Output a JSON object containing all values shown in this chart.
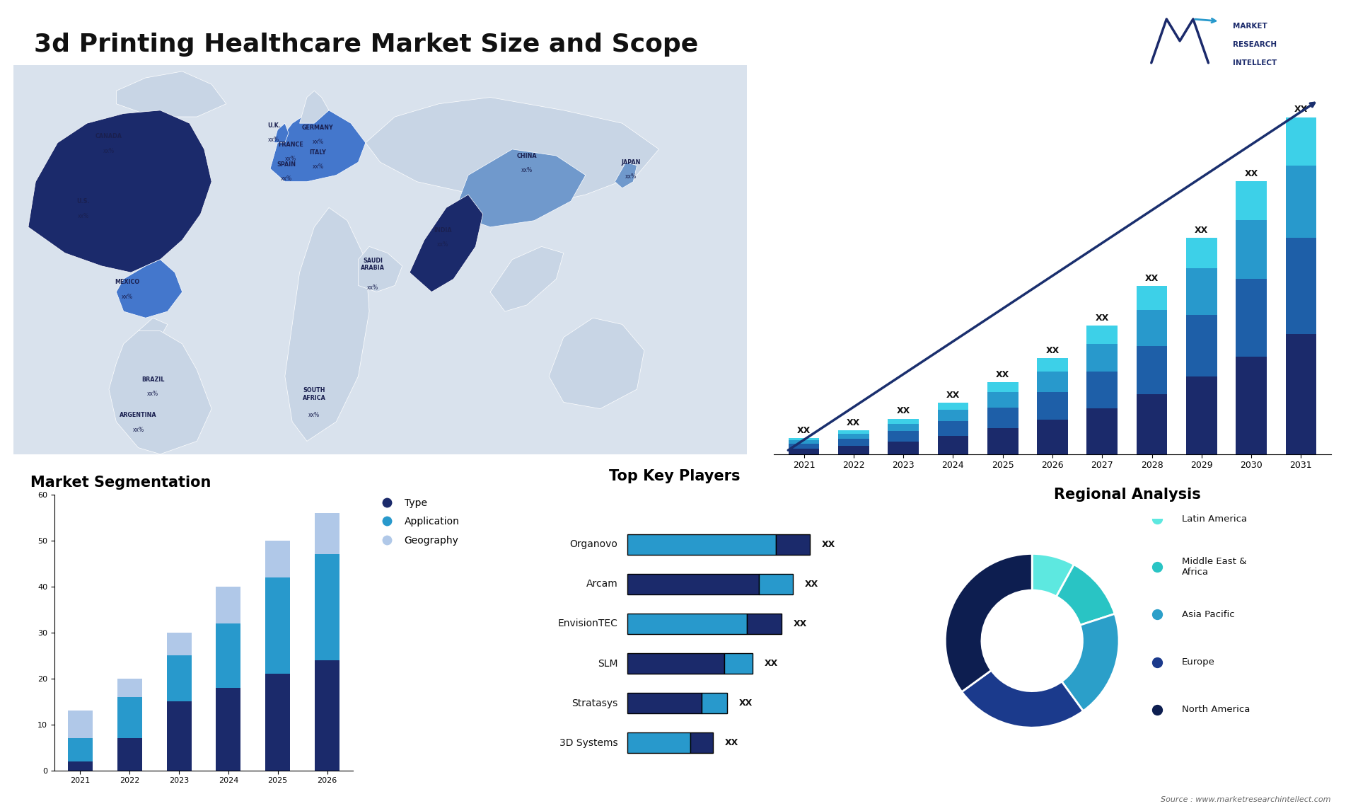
{
  "title": "3d Printing Healthcare Market Size and Scope",
  "title_fontsize": 26,
  "background_color": "#ffffff",
  "bar_chart_years": [
    2021,
    2022,
    2023,
    2024,
    2025,
    2026,
    2027,
    2028,
    2029,
    2030,
    2031
  ],
  "bar_seg1": [
    1.0,
    1.5,
    2.2,
    3.2,
    4.5,
    6.0,
    8.0,
    10.5,
    13.5,
    17.0,
    21.0
  ],
  "bar_seg2": [
    0.8,
    1.2,
    1.8,
    2.6,
    3.6,
    4.8,
    6.4,
    8.4,
    10.8,
    13.6,
    16.8
  ],
  "bar_seg3": [
    0.6,
    0.9,
    1.3,
    1.9,
    2.7,
    3.6,
    4.8,
    6.3,
    8.1,
    10.2,
    12.6
  ],
  "bar_seg4": [
    0.4,
    0.6,
    0.9,
    1.3,
    1.8,
    2.4,
    3.2,
    4.2,
    5.4,
    6.8,
    8.4
  ],
  "bar_colors": [
    "#1b2a6b",
    "#1e5fa8",
    "#2899cc",
    "#3dd0e8"
  ],
  "seg_chart_title": "Market Segmentation",
  "seg_years": [
    2021,
    2022,
    2023,
    2024,
    2025,
    2026
  ],
  "seg_type": [
    2,
    7,
    15,
    18,
    21,
    24
  ],
  "seg_application": [
    5,
    9,
    10,
    14,
    21,
    23
  ],
  "seg_geography": [
    6,
    4,
    5,
    8,
    8,
    9
  ],
  "seg_colors": [
    "#1b2a6b",
    "#2899cc",
    "#b0c8e8"
  ],
  "seg_legend": [
    "Type",
    "Application",
    "Geography"
  ],
  "seg_ylim": [
    0,
    60
  ],
  "players_title": "Top Key Players",
  "players": [
    "Organovo",
    "Arcam",
    "EnvisionTEC",
    "SLM",
    "Stratasys",
    "3D Systems"
  ],
  "players_seg1": [
    0.52,
    0.46,
    0.42,
    0.34,
    0.26,
    0.22
  ],
  "players_seg2": [
    0.12,
    0.12,
    0.12,
    0.1,
    0.09,
    0.08
  ],
  "players_col1": [
    "#2899cc",
    "#1b2a6b",
    "#2899cc",
    "#1b2a6b",
    "#1b2a6b",
    "#2899cc"
  ],
  "players_col2": [
    "#1b2a6b",
    "#2899cc",
    "#1b2a6b",
    "#2899cc",
    "#2899cc",
    "#1b2a6b"
  ],
  "regional_title": "Regional Analysis",
  "regional_labels": [
    "Latin America",
    "Middle East &\nAfrica",
    "Asia Pacific",
    "Europe",
    "North America"
  ],
  "regional_sizes": [
    8,
    12,
    20,
    25,
    35
  ],
  "regional_colors": [
    "#5de8e0",
    "#29c4c4",
    "#2b9fc9",
    "#1b3a8c",
    "#0d1e50"
  ],
  "source_text": "Source : www.marketresearchintellect.com",
  "map_bg": "#d9e2ed",
  "map_land": "#c8d5e5",
  "map_highlight_dark": "#1b2a6b",
  "map_highlight_mid": "#4477cc",
  "map_highlight_light": "#7099cc"
}
